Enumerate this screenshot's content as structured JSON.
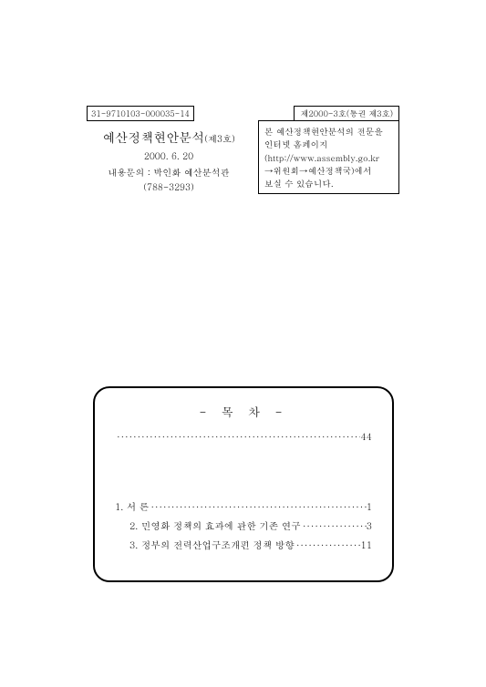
{
  "docNumberLeft": "31-9710103-000035-14",
  "issueNumberRight": "제2000-3호(통권 제3호)",
  "titleBlock": {
    "mainTitle": "예산정책현안분석",
    "issueSuffix": "(제3호)",
    "date": "2000. 6. 20",
    "contact": "내용문의 : 박인화 예산분석관",
    "phone": "(788-3293)"
  },
  "infoBox": {
    "line1": "본 예산정책현안분석의 전문을",
    "line2": "인터넷 홈페이지",
    "line3": "(http://www.assembly.go.kr",
    "line4": "→위원회→예산정책국)에서",
    "line5": "보실 수 있습니다."
  },
  "toc": {
    "title": "- 목 차 -",
    "dots": "···························································································",
    "items": [
      {
        "label": "",
        "page": "44",
        "indent": 1
      },
      {
        "label": "1. 서  론",
        "page": "1",
        "indent": 1
      },
      {
        "label": "2. 민영화 정책의 효과에 관한 기존 연구",
        "page": "3",
        "indent": 2
      },
      {
        "label": "3. 정부의 전력산업구조개편 정책 방향",
        "page": "11",
        "indent": 2
      }
    ]
  },
  "styling": {
    "pageWidth": 533,
    "pageHeight": 754,
    "backgroundColor": "#ffffff",
    "textColor": "#000000",
    "borderColor": "#000000",
    "tocBorderRadius": 18,
    "fontSizes": {
      "docNumber": 9,
      "mainTitle": 14,
      "subtext": 10,
      "infoBox": 9.5,
      "tocTitle": 13,
      "tocLine": 10.5
    }
  }
}
